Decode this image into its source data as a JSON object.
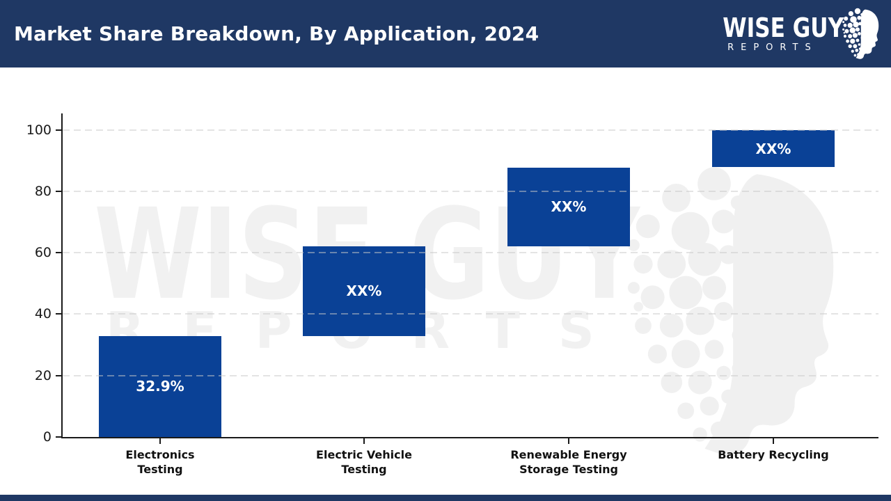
{
  "header": {
    "title": "Market Share Breakdown, By Application, 2024",
    "bg_color": "#1f3864",
    "logo": {
      "name": "WISE GUY",
      "sub": "REPORTS"
    }
  },
  "watermark": {
    "name": "WISE GUY",
    "sub": "REPORTS"
  },
  "chart_data": {
    "type": "bar",
    "subtype": "waterfall-stacked",
    "title": "Market Share Breakdown, By Application, 2024",
    "categories": [
      [
        "Electronics",
        "Testing"
      ],
      [
        "Electric Vehicle",
        "Testing"
      ],
      [
        "Renewable Energy",
        "Storage Testing"
      ],
      [
        "Battery Recycling"
      ]
    ],
    "segments": [
      {
        "category": "Electronics Testing",
        "start": 0,
        "end": 32.9,
        "label": "32.9%"
      },
      {
        "category": "Electric Vehicle Testing",
        "start": 32.9,
        "end": 62.1,
        "label": "XX%"
      },
      {
        "category": "Renewable Energy Storage Testing",
        "start": 62.1,
        "end": 87.8,
        "label": "XX%"
      },
      {
        "category": "Battery Recycling",
        "start": 87.8,
        "end": 100,
        "label": "XX%"
      }
    ],
    "yticks": [
      0,
      20,
      40,
      60,
      80,
      100
    ],
    "ylim": [
      0,
      105.6
    ],
    "xlabel": "",
    "ylabel": "",
    "grid": "horizontal-dashed",
    "legend": "none",
    "bar_color": "#0a4196",
    "bar_label_color": "#ffffff",
    "axis_color": "#1a1a1a"
  }
}
